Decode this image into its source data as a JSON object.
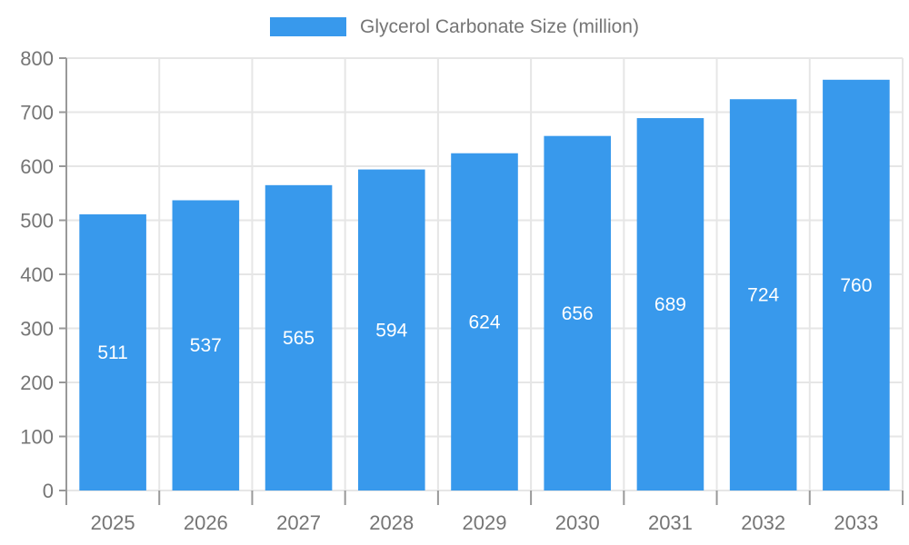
{
  "chart_data": {
    "type": "bar",
    "title": "Glycerol Carbonate Size (million)",
    "legend": {
      "label": "Glycerol Carbonate Size (million)",
      "position": "top-center"
    },
    "categories": [
      "2025",
      "2026",
      "2027",
      "2028",
      "2029",
      "2030",
      "2031",
      "2032",
      "2033"
    ],
    "series": [
      {
        "name": "Glycerol Carbonate Size (million)",
        "values": [
          511,
          537,
          565,
          594,
          624,
          656,
          689,
          724,
          760
        ]
      }
    ],
    "xlabel": "",
    "ylabel": "",
    "ylim": [
      0,
      800
    ],
    "ytick_step": 100,
    "yticks": [
      "0",
      "100",
      "200",
      "300",
      "400",
      "500",
      "600",
      "700",
      "800"
    ],
    "grid": "horizontal-and-vertical",
    "value_labels": "centered-inside-bars",
    "colors": {
      "bar": "#3899EC",
      "grid_line": "#E6E6E6",
      "axis_line": "#999999",
      "tick_label": "#757575",
      "legend_text": "#757575",
      "value_label": "#FFFFFF",
      "background": "#FFFFFF"
    }
  }
}
